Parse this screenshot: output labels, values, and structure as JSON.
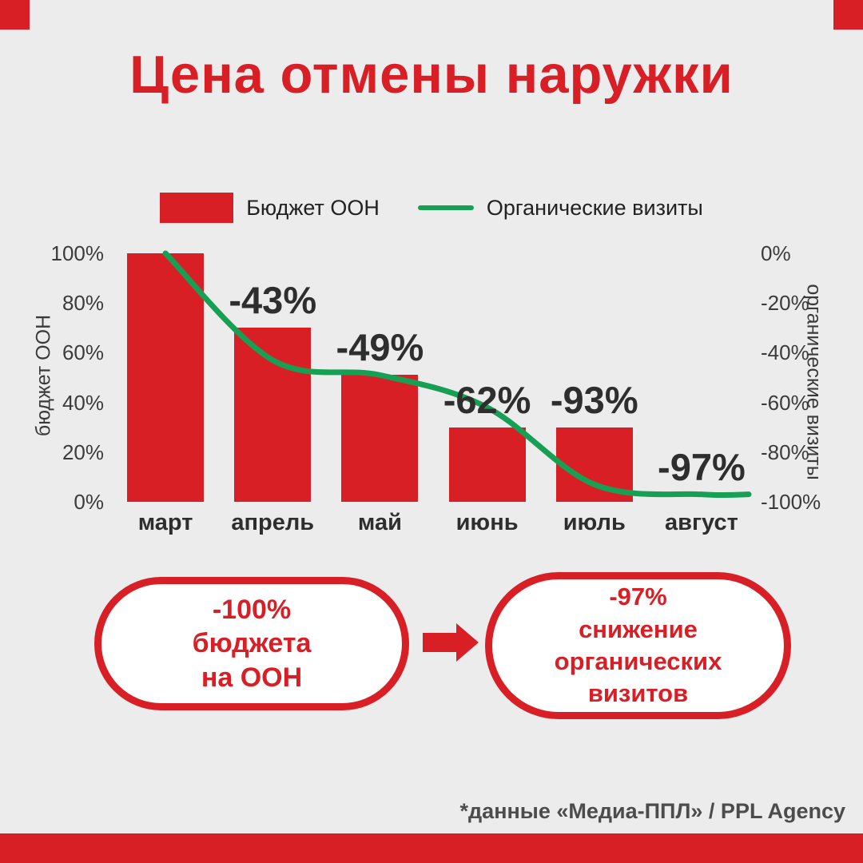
{
  "page": {
    "title": "Цена отмены наружки",
    "footnote": "*данные «Медиа-ППЛ» / PPL Agency"
  },
  "colors": {
    "red": "#d81f26",
    "green": "#17a054",
    "background": "#ececec",
    "ink": "#2e2e2e"
  },
  "legend": {
    "bar_label": "Бюджет ООН",
    "line_label": "Органические визиты"
  },
  "chart_data": {
    "type": "bar",
    "title": "Цена отмены наружки",
    "categories": [
      "март",
      "апрель",
      "май",
      "июнь",
      "июль",
      "август"
    ],
    "series": [
      {
        "name": "Бюджет ООН",
        "type": "bar",
        "axis": "left",
        "values": [
          100,
          70,
          51,
          30,
          30,
          0
        ]
      },
      {
        "name": "Органические визиты",
        "type": "line",
        "axis": "right",
        "values": [
          0,
          -43,
          -49,
          -62,
          -93,
          -97
        ]
      }
    ],
    "annotations": [
      {
        "category": "апрель",
        "text": "-43%"
      },
      {
        "category": "май",
        "text": "-49%"
      },
      {
        "category": "июнь",
        "text": "-62%"
      },
      {
        "category": "июль",
        "text": "-93%"
      },
      {
        "category": "август",
        "text": "-97%"
      }
    ],
    "left_axis": {
      "title": "бюджет ООН",
      "ticks": [
        "100%",
        "80%",
        "60%",
        "40%",
        "20%",
        "0%"
      ],
      "range": [
        0,
        100
      ]
    },
    "right_axis": {
      "title": "органические визиты",
      "ticks": [
        "0%",
        "-20%",
        "-40%",
        "-60%",
        "-80%",
        "-100%"
      ],
      "range": [
        0,
        -100
      ]
    },
    "grid": false,
    "legend_position": "top"
  },
  "callouts": {
    "left": {
      "lines": [
        "-100%",
        "бюджета",
        "на ООН"
      ]
    },
    "right": {
      "lines": [
        "-97%",
        "снижение",
        "органических",
        "визитов"
      ]
    }
  }
}
